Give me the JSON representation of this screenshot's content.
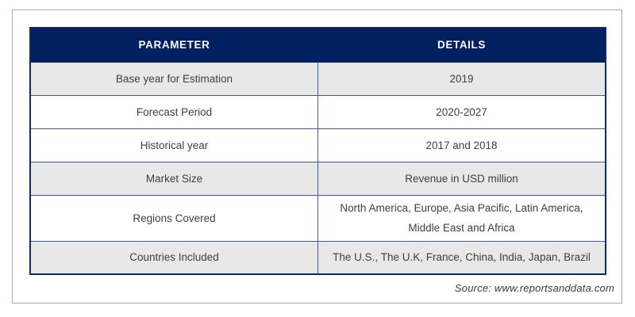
{
  "colors": {
    "header_bg": "#002060",
    "header_text": "#ffffff",
    "row_shaded_bg": "#e8e8e8",
    "row_white_bg": "#ffffff",
    "table_outer_border": "#122a63",
    "table_inner_border": "#44598c",
    "body_text": "#3f3f3f",
    "source_text": "#3c3c3c",
    "frame_border": "#ababab"
  },
  "table": {
    "headers": [
      "PARAMETER",
      "DETAILS"
    ],
    "rows": [
      {
        "parameter": "Base year for Estimation",
        "details": "2019"
      },
      {
        "parameter": "Forecast Period",
        "details": "2020-2027"
      },
      {
        "parameter": "Historical year",
        "details": "2017 and 2018"
      },
      {
        "parameter": "Market Size",
        "details": "Revenue in USD million"
      },
      {
        "parameter": "Regions Covered",
        "details": "North America, Europe, Asia Pacific, Latin America, Middle East and Africa"
      },
      {
        "parameter": "Countries Included",
        "details": "The U.S., The  U.K, France, China, India, Japan, Brazil"
      }
    ]
  },
  "source": {
    "label": "Source: www.reportsanddata.com"
  }
}
